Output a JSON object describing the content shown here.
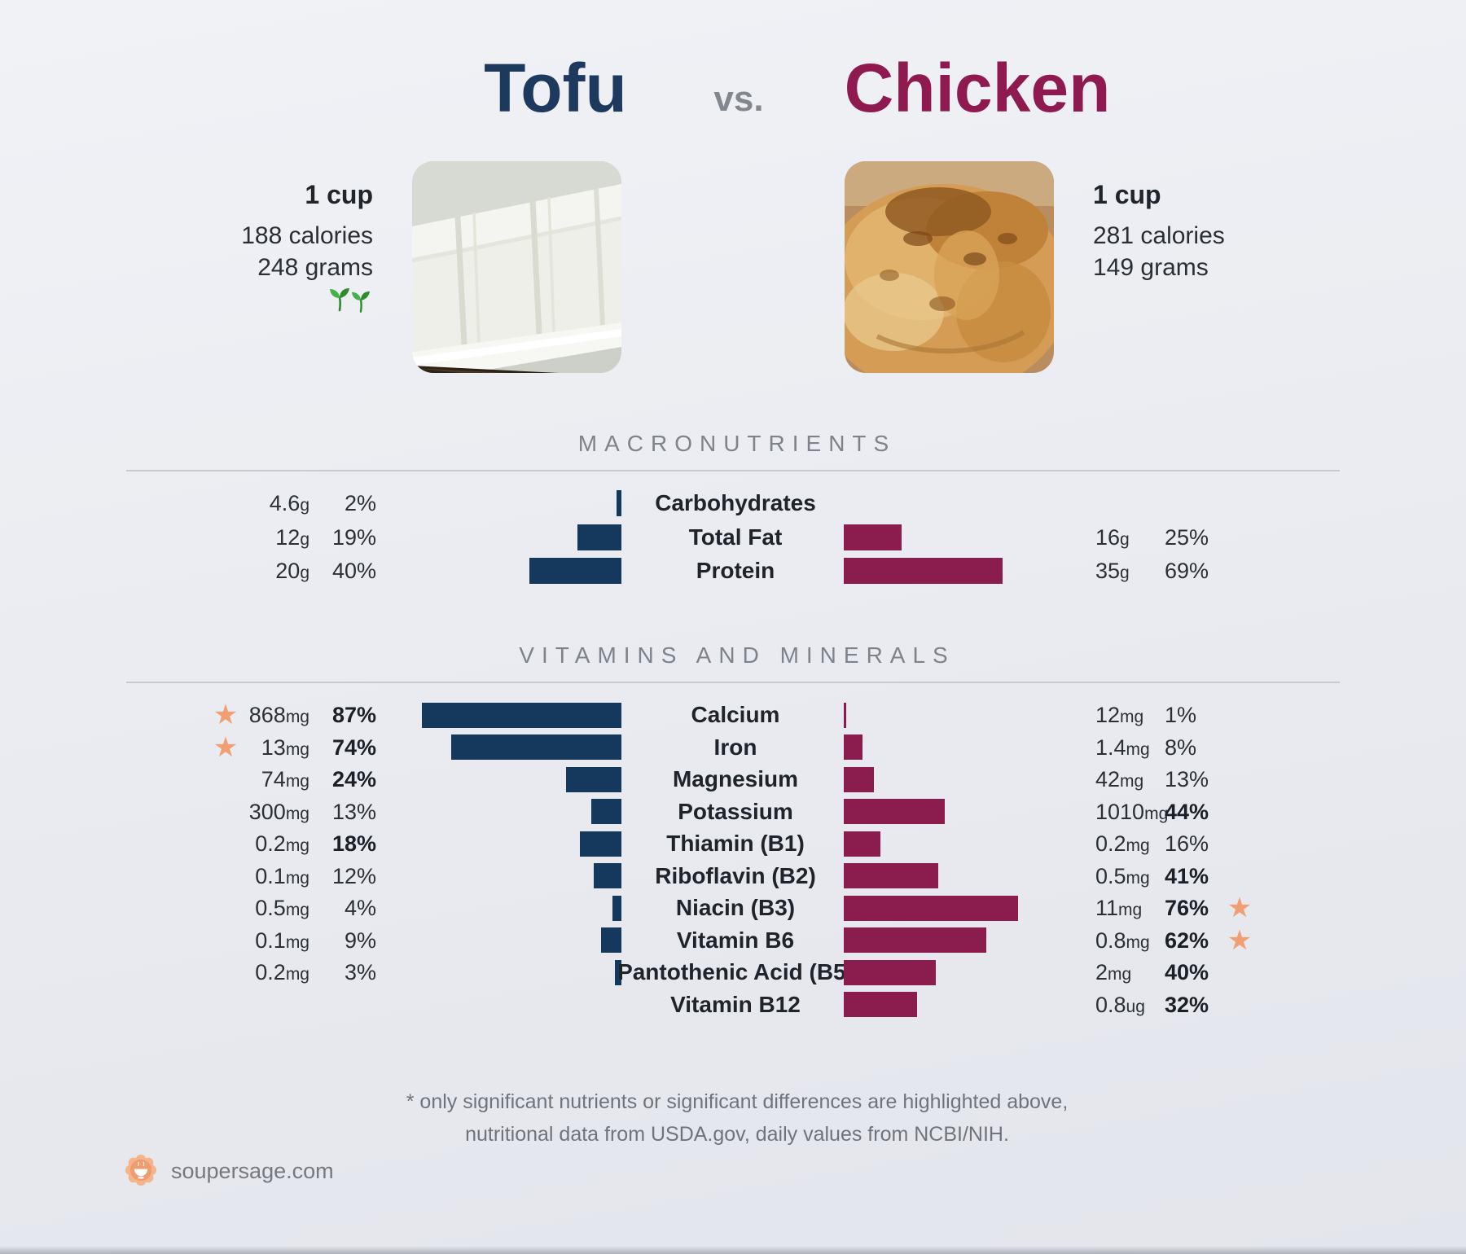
{
  "header": {
    "tofu_title": "Tofu",
    "vs_label": "vs.",
    "chicken_title": "Chicken"
  },
  "colors": {
    "tofu": "#15395c",
    "chicken": "#8a1d4e",
    "tofu_title": "#1d3a5e",
    "chicken_title": "#8e1a4f",
    "star": "#f09e72"
  },
  "icons": {
    "vegan": "seedling-icon",
    "highlight": "star-icon",
    "brand": "soup-bowl-flower-badge-icon"
  },
  "tofu_summary": {
    "serving": "1 cup",
    "calories": "188 calories",
    "grams": "248 grams"
  },
  "chicken_summary": {
    "serving": "1 cup",
    "calories": "281 calories",
    "grams": "149 grams"
  },
  "sections": {
    "macros": "MACRONUTRIENTS",
    "vitamins": "VITAMINS AND MINERALS"
  },
  "macros": {
    "rows": [
      {
        "label": "Carbohydrates",
        "t_amount": "4.6",
        "t_unit": "g",
        "t_pct": "2%",
        "t_val": 2,
        "t_bold": false,
        "t_star": false,
        "c_amount": null,
        "c_unit": null,
        "c_pct": null,
        "c_val": null,
        "c_bold": false,
        "c_star": false
      },
      {
        "label": "Total Fat",
        "t_amount": "12",
        "t_unit": "g",
        "t_pct": "19%",
        "t_val": 19,
        "t_bold": false,
        "t_star": false,
        "c_amount": "16",
        "c_unit": "g",
        "c_pct": "25%",
        "c_val": 25,
        "c_bold": false,
        "c_star": false
      },
      {
        "label": "Protein",
        "t_amount": "20",
        "t_unit": "g",
        "t_pct": "40%",
        "t_val": 40,
        "t_bold": false,
        "t_star": false,
        "c_amount": "35",
        "c_unit": "g",
        "c_pct": "69%",
        "c_val": 69,
        "c_bold": false,
        "c_star": false
      }
    ]
  },
  "vitamins": {
    "rows": [
      {
        "label": "Calcium",
        "t_amount": "868",
        "t_unit": "mg",
        "t_pct": "87%",
        "t_val": 87,
        "t_bold": true,
        "t_star": true,
        "c_amount": "12",
        "c_unit": "mg",
        "c_pct": "1%",
        "c_val": 1,
        "c_bold": false,
        "c_star": false
      },
      {
        "label": "Iron",
        "t_amount": "13",
        "t_unit": "mg",
        "t_pct": "74%",
        "t_val": 74,
        "t_bold": true,
        "t_star": true,
        "c_amount": "1.4",
        "c_unit": "mg",
        "c_pct": "8%",
        "c_val": 8,
        "c_bold": false,
        "c_star": false
      },
      {
        "label": "Magnesium",
        "t_amount": "74",
        "t_unit": "mg",
        "t_pct": "24%",
        "t_val": 24,
        "t_bold": true,
        "t_star": false,
        "c_amount": "42",
        "c_unit": "mg",
        "c_pct": "13%",
        "c_val": 13,
        "c_bold": false,
        "c_star": false
      },
      {
        "label": "Potassium",
        "t_amount": "300",
        "t_unit": "mg",
        "t_pct": "13%",
        "t_val": 13,
        "t_bold": false,
        "t_star": false,
        "c_amount": "1010",
        "c_unit": "mg",
        "c_pct": "44%",
        "c_val": 44,
        "c_bold": true,
        "c_star": false
      },
      {
        "label": "Thiamin (B1)",
        "t_amount": "0.2",
        "t_unit": "mg",
        "t_pct": "18%",
        "t_val": 18,
        "t_bold": true,
        "t_star": false,
        "c_amount": "0.2",
        "c_unit": "mg",
        "c_pct": "16%",
        "c_val": 16,
        "c_bold": false,
        "c_star": false
      },
      {
        "label": "Riboflavin (B2)",
        "t_amount": "0.1",
        "t_unit": "mg",
        "t_pct": "12%",
        "t_val": 12,
        "t_bold": false,
        "t_star": false,
        "c_amount": "0.5",
        "c_unit": "mg",
        "c_pct": "41%",
        "c_val": 41,
        "c_bold": true,
        "c_star": false
      },
      {
        "label": "Niacin (B3)",
        "t_amount": "0.5",
        "t_unit": "mg",
        "t_pct": "4%",
        "t_val": 4,
        "t_bold": false,
        "t_star": false,
        "c_amount": "11",
        "c_unit": "mg",
        "c_pct": "76%",
        "c_val": 76,
        "c_bold": true,
        "c_star": true
      },
      {
        "label": "Vitamin B6",
        "t_amount": "0.1",
        "t_unit": "mg",
        "t_pct": "9%",
        "t_val": 9,
        "t_bold": false,
        "t_star": false,
        "c_amount": "0.8",
        "c_unit": "mg",
        "c_pct": "62%",
        "c_val": 62,
        "c_bold": true,
        "c_star": true
      },
      {
        "label": "Pantothenic Acid (B5)",
        "t_amount": "0.2",
        "t_unit": "mg",
        "t_pct": "3%",
        "t_val": 3,
        "t_bold": false,
        "t_star": false,
        "c_amount": "2",
        "c_unit": "mg",
        "c_pct": "40%",
        "c_val": 40,
        "c_bold": true,
        "c_star": false
      },
      {
        "label": "Vitamin B12",
        "t_amount": null,
        "t_unit": null,
        "t_pct": null,
        "t_val": null,
        "t_bold": false,
        "t_star": false,
        "c_amount": "0.8",
        "c_unit": "ug",
        "c_pct": "32%",
        "c_val": 32,
        "c_bold": true,
        "c_star": false
      }
    ]
  },
  "chart_data": [
    {
      "type": "bar",
      "title": "MACRONUTRIENTS",
      "orientation": "horizontal, mirrored from center labels (tofu grows left, chicken grows right)",
      "categories": [
        "Carbohydrates",
        "Total Fat",
        "Protein"
      ],
      "series": [
        {
          "name": "Tofu (1 cup, 188 calories, 248 grams)",
          "amounts": [
            "4.6g",
            "12g",
            "20g"
          ],
          "values": [
            2,
            19,
            40
          ]
        },
        {
          "name": "Chicken (1 cup, 281 calories, 149 grams)",
          "amounts": [
            null,
            "16g",
            "35g"
          ],
          "values": [
            null,
            25,
            69
          ]
        }
      ],
      "value_unit": "% daily value",
      "xlim": [
        0,
        100
      ],
      "grid": false,
      "legend_position": "none (color-coded: tofu navy #15395c left, chicken maroon #8a1d4e right)"
    },
    {
      "type": "bar",
      "title": "VITAMINS AND MINERALS",
      "orientation": "horizontal, mirrored from center labels (tofu grows left, chicken grows right)",
      "categories": [
        "Calcium",
        "Iron",
        "Magnesium",
        "Potassium",
        "Thiamin (B1)",
        "Riboflavin (B2)",
        "Niacin (B3)",
        "Vitamin B6",
        "Pantothenic Acid (B5)",
        "Vitamin B12"
      ],
      "series": [
        {
          "name": "Tofu",
          "amounts": [
            "868mg",
            "13mg",
            "74mg",
            "300mg",
            "0.2mg",
            "0.1mg",
            "0.5mg",
            "0.1mg",
            "0.2mg",
            null
          ],
          "values": [
            87,
            74,
            24,
            13,
            18,
            12,
            4,
            9,
            3,
            null
          ],
          "starred_categories": [
            "Calcium",
            "Iron"
          ]
        },
        {
          "name": "Chicken",
          "amounts": [
            "12mg",
            "1.4mg",
            "42mg",
            "1010mg",
            "0.2mg",
            "0.5mg",
            "11mg",
            "0.8mg",
            "2mg",
            "0.8ug"
          ],
          "values": [
            1,
            8,
            13,
            44,
            16,
            41,
            76,
            62,
            40,
            32
          ],
          "starred_categories": [
            "Niacin (B3)",
            "Vitamin B6"
          ]
        }
      ],
      "value_unit": "% daily value",
      "xlim": [
        0,
        100
      ],
      "grid": false,
      "legend_position": "none"
    }
  ],
  "footer": {
    "line1": "* only significant nutrients or significant differences are highlighted above,",
    "line2": "nutritional data from USDA.gov, daily values from NCBI/NIH."
  },
  "brand": {
    "site": "soupersage.com"
  }
}
